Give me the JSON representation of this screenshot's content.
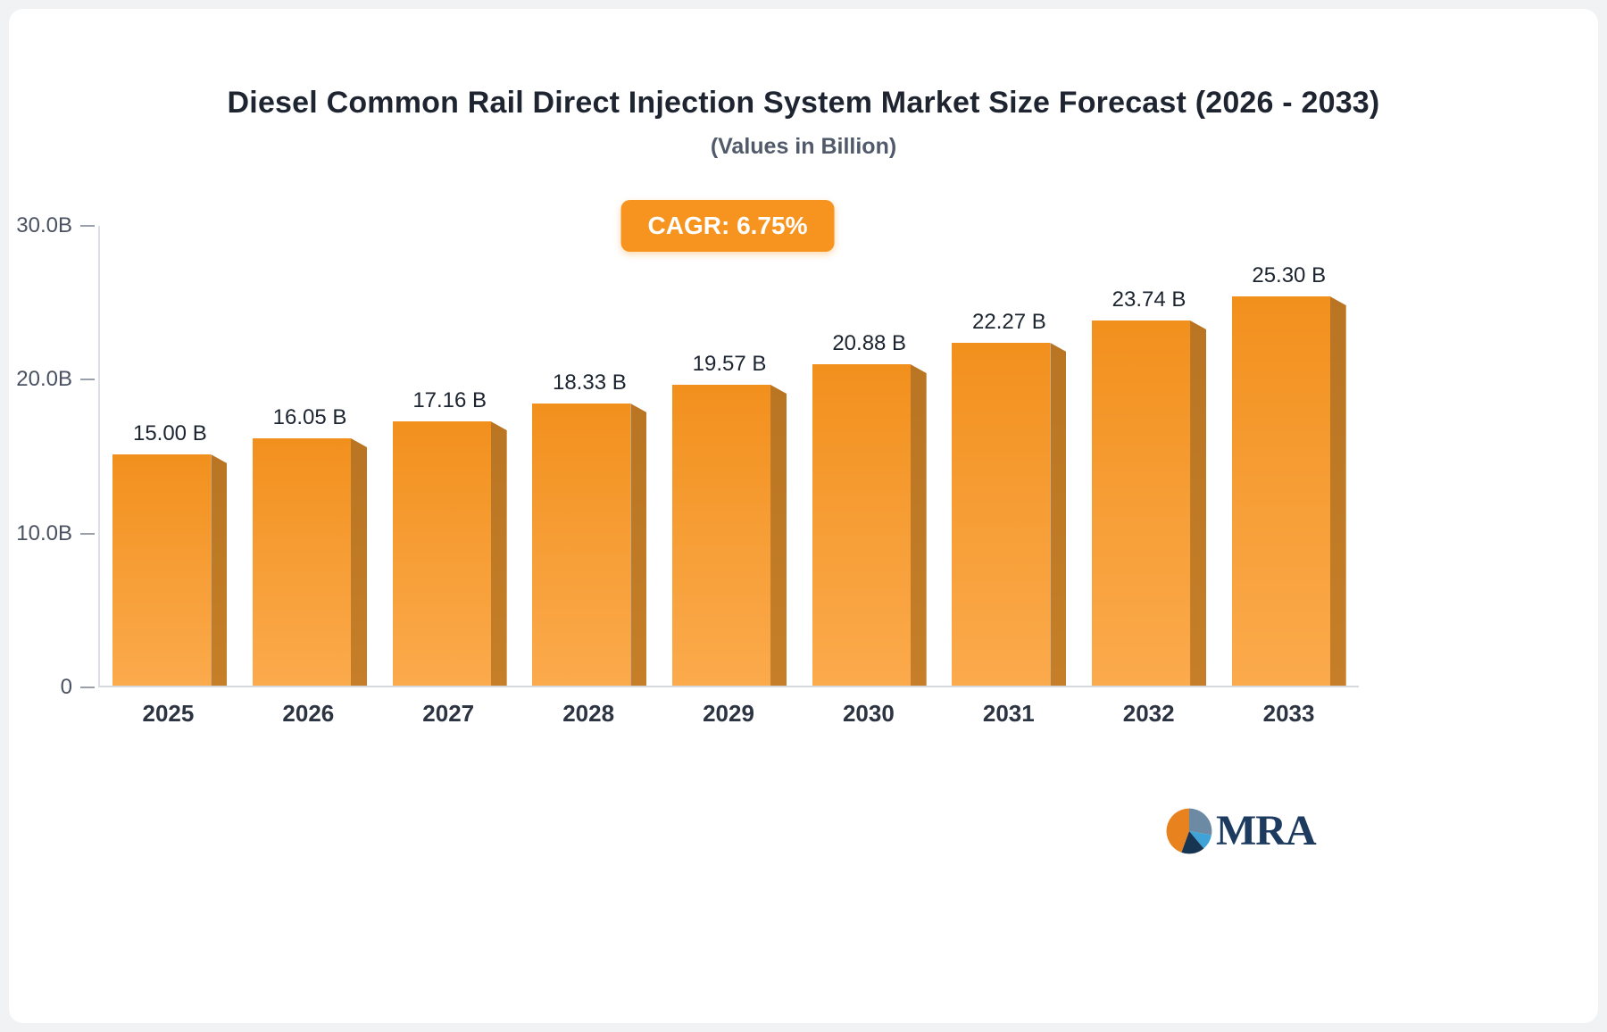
{
  "header": {
    "title": "Diesel Common Rail Direct Injection System Market Size Forecast (2026 - 2033)",
    "subtitle": "(Values in Billion)"
  },
  "badge": {
    "label": "CAGR: 6.75%",
    "bg": "#f79420"
  },
  "chart_data": {
    "type": "bar",
    "title": "Diesel Common Rail Direct Injection System Market Size Forecast (2026 - 2033)",
    "subtitle": "(Values in Billion)",
    "categories": [
      "2025",
      "2026",
      "2027",
      "2028",
      "2029",
      "2030",
      "2031",
      "2032",
      "2033"
    ],
    "values": [
      15.0,
      16.05,
      17.16,
      18.33,
      19.57,
      20.88,
      22.27,
      23.74,
      25.3
    ],
    "value_labels": [
      "15.00 B",
      "16.05 B",
      "17.16 B",
      "18.33 B",
      "19.57 B",
      "20.88 B",
      "22.27 B",
      "23.74 B",
      "25.30 B"
    ],
    "xlabel": "",
    "ylabel": "",
    "ylim": [
      0,
      30
    ],
    "yticks": [
      {
        "label": "30.0B",
        "value": 30
      },
      {
        "label": "20.0B",
        "value": 20
      },
      {
        "label": "10.0B",
        "value": 10
      },
      {
        "label": "0",
        "value": 0
      }
    ],
    "grid": false,
    "legend": "none",
    "bar_color_top": "#f2901d",
    "bar_color_bottom": "#fbaa4c",
    "bar_side_color": "#c67f28"
  },
  "logo": {
    "text": "MRA",
    "colors": {
      "orange": "#e8821e",
      "steel_blue": "#6d8aa5",
      "light_blue": "#3fa3d8",
      "navy": "#173450"
    }
  }
}
